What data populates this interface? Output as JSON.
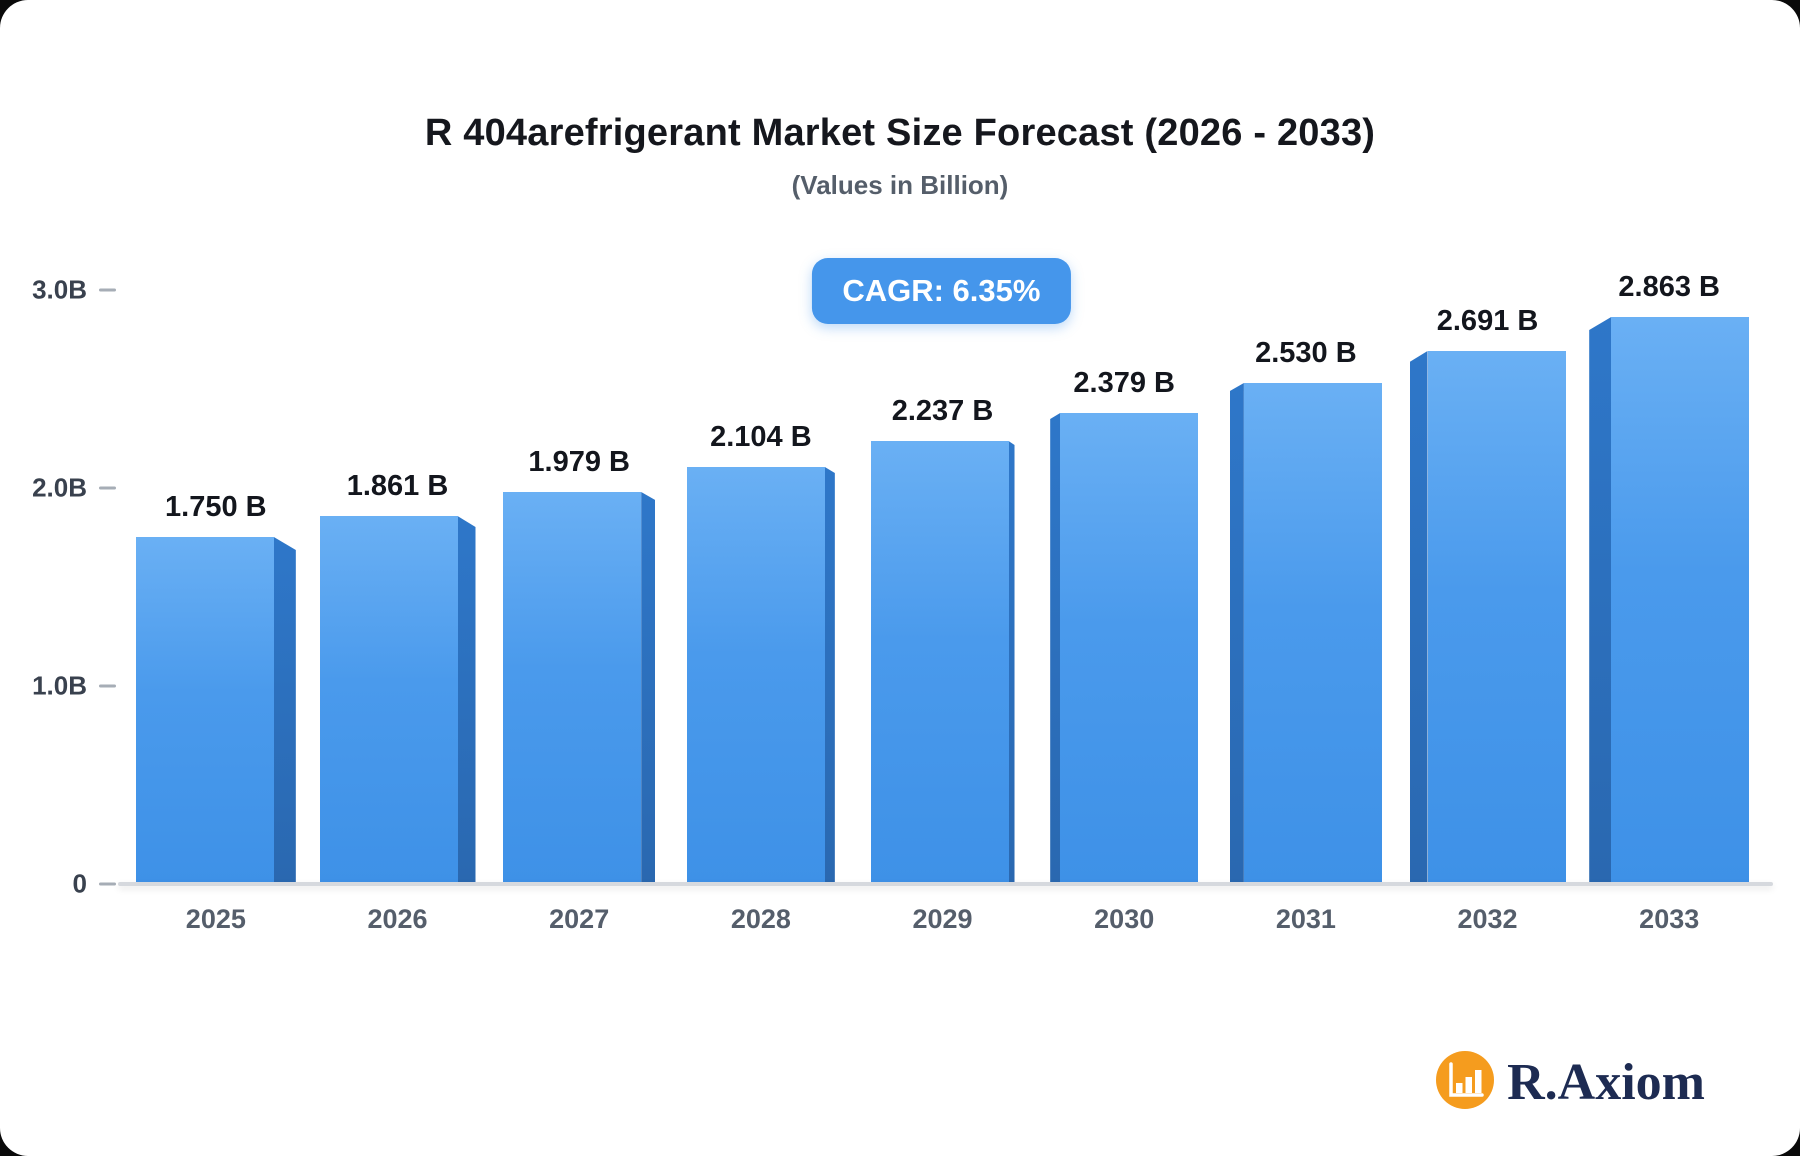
{
  "header": {
    "title": "R 404arefrigerant Market Size Forecast (2026 - 2033)",
    "subtitle": "(Values in Billion)"
  },
  "badge": {
    "label": "CAGR: 6.35%",
    "color": "#4596eb"
  },
  "logo": {
    "text": "R.Axiom",
    "icon": "bar-chart-icon",
    "circle_color": "#F59C1E",
    "text_color": "#1d2b52"
  },
  "chart_data": {
    "type": "bar",
    "title": "R 404arefrigerant Market Size Forecast (2026 - 2033)",
    "subtitle": "(Values in Billion)",
    "cagr_annotation": "CAGR: 6.35%",
    "categories": [
      "2025",
      "2026",
      "2027",
      "2028",
      "2029",
      "2030",
      "2031",
      "2032",
      "2033"
    ],
    "values": [
      1.75,
      1.861,
      1.979,
      2.104,
      2.237,
      2.379,
      2.53,
      2.691,
      2.863
    ],
    "value_labels": [
      "1.750 B",
      "1.861 B",
      "1.979 B",
      "2.104 B",
      "2.237 B",
      "2.379 B",
      "2.530 B",
      "2.691 B",
      "2.863 B"
    ],
    "xlabel": "",
    "ylabel": "",
    "ylim": [
      0,
      3.0
    ],
    "y_ticks": [
      {
        "label": "0",
        "value": 0
      },
      {
        "label": "1.0B",
        "value": 1.0
      },
      {
        "label": "2.0B",
        "value": 2.0
      },
      {
        "label": "3.0B",
        "value": 3.0
      }
    ],
    "grid": "off",
    "legend": "none",
    "bar_color_top": "#6ab0f4",
    "bar_color_bottom": "#3e91e7",
    "bar_side_color": "#2d6fbb"
  }
}
